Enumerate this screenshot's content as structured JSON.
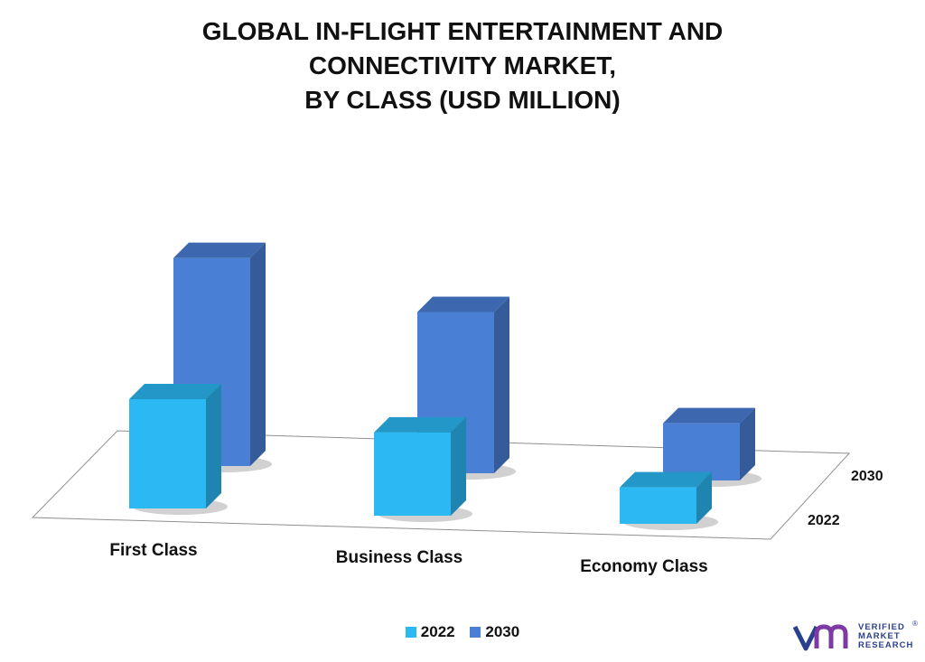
{
  "title_lines": [
    "GLOBAL IN-FLIGHT ENTERTAINMENT AND",
    "CONNECTIVITY MARKET,",
    "BY CLASS (USD MILLION)"
  ],
  "legend": {
    "label_2022": "2022",
    "label_2030": "2030"
  },
  "depth_labels": {
    "back": "2030",
    "front": "2022"
  },
  "logo": {
    "line1": "VERIFIED",
    "line2": "MARKET",
    "line3": "RESEARCH",
    "registered": "®"
  },
  "colors": {
    "s2022": "#2bb8f3",
    "s2030": "#4a7fd6"
  },
  "chart_data": {
    "type": "bar",
    "style": "3d-clustered-depth",
    "categories": [
      "First Class",
      "Business Class",
      "Economy Class"
    ],
    "series": [
      {
        "name": "2022",
        "values": [
          4.2,
          3.2,
          1.4
        ]
      },
      {
        "name": "2030",
        "values": [
          8.0,
          6.2,
          2.2
        ]
      }
    ],
    "title": "GLOBAL IN-FLIGHT ENTERTAINMENT AND CONNECTIVITY MARKET, BY CLASS (USD MILLION)",
    "ylim": [
      0,
      8.5
    ],
    "grid": false,
    "legend_position": "bottom"
  }
}
